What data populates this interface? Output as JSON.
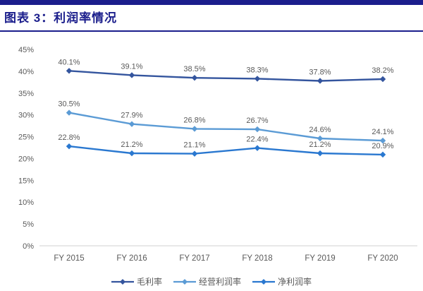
{
  "header": {
    "title": "图表 3：利润率情况",
    "accent_color": "#1B1E8C"
  },
  "chart_data": {
    "type": "line",
    "title": "利润率情况",
    "categories": [
      "FY 2015",
      "FY 2016",
      "FY 2017",
      "FY 2018",
      "FY 2019",
      "FY 2020"
    ],
    "series": [
      {
        "name": "毛利率",
        "slug": "gross-margin",
        "color": "#34559E",
        "values": [
          40.1,
          39.1,
          38.5,
          38.3,
          37.8,
          38.2
        ],
        "labels": [
          "40.1%",
          "39.1%",
          "38.5%",
          "38.3%",
          "37.8%",
          "38.2%"
        ]
      },
      {
        "name": "经营利润率",
        "slug": "operating-margin",
        "color": "#5B9BD5",
        "values": [
          30.5,
          27.9,
          26.8,
          26.7,
          24.6,
          24.1
        ],
        "labels": [
          "30.5%",
          "27.9%",
          "26.8%",
          "26.7%",
          "24.6%",
          "24.1%"
        ]
      },
      {
        "name": "净利润率",
        "slug": "net-margin",
        "color": "#2A78D0",
        "values": [
          22.8,
          21.2,
          21.1,
          22.4,
          21.2,
          20.9
        ],
        "labels": [
          "22.8%",
          "21.2%",
          "21.1%",
          "22.4%",
          "21.2%",
          "20.9%"
        ]
      }
    ],
    "xlabel": "",
    "ylabel": "",
    "ylim": [
      0,
      45
    ],
    "ytick_step": 5,
    "ytick_labels": [
      "0%",
      "5%",
      "10%",
      "15%",
      "20%",
      "25%",
      "30%",
      "35%",
      "40%",
      "45%"
    ],
    "grid": false,
    "marker": "diamond",
    "data_labels_position": "above",
    "legend_position": "bottom",
    "axis_color": "#D9D9D9",
    "text_color": "#595959"
  }
}
